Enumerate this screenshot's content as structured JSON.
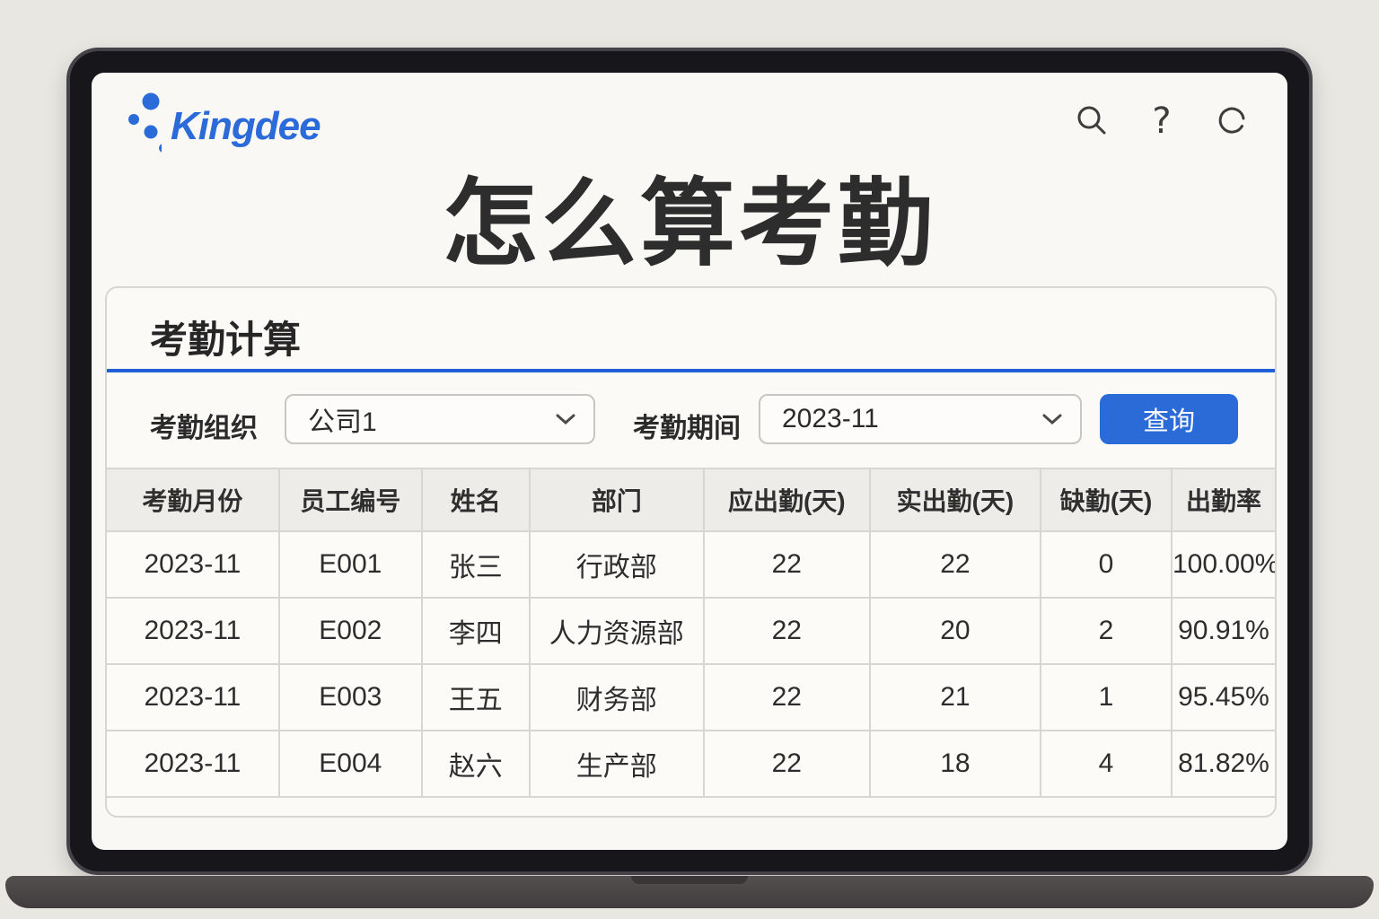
{
  "brand": {
    "name": "Kingdee"
  },
  "topbar": {
    "icons": [
      {
        "name": "search-icon"
      },
      {
        "name": "help-icon",
        "glyph": "?"
      },
      {
        "name": "refresh-icon"
      }
    ]
  },
  "page_title": "怎么算考勤",
  "panel": {
    "title": "考勤计算",
    "filters": {
      "org_label": "考勤组织",
      "org_value": "公司1",
      "period_label": "考勤期间",
      "period_value": "2023-11",
      "query_button": "查询"
    },
    "table": {
      "headers": [
        "考勤月份",
        "员工编号",
        "姓名",
        "部门",
        "应出勤(天)",
        "实出勤(天)",
        "缺勤(天)",
        "出勤率"
      ],
      "rows": [
        [
          "2023-11",
          "E001",
          "张三",
          "行政部",
          "22",
          "22",
          "0",
          "100.00%"
        ],
        [
          "2023-11",
          "E002",
          "李四",
          "人力资源部",
          "22",
          "20",
          "2",
          "90.91%"
        ],
        [
          "2023-11",
          "E003",
          "王五",
          "财务部",
          "22",
          "21",
          "1",
          "95.45%"
        ],
        [
          "2023-11",
          "E004",
          "赵六",
          "生产部",
          "22",
          "18",
          "4",
          "81.82%"
        ]
      ]
    }
  },
  "colors": {
    "accent_blue": "#2a6bd8",
    "divider_blue": "#1f5fd8",
    "logo_blue": "#2a6ad9",
    "header_row_bg": "#edece8",
    "screen_bg": "#f9f8f4"
  }
}
